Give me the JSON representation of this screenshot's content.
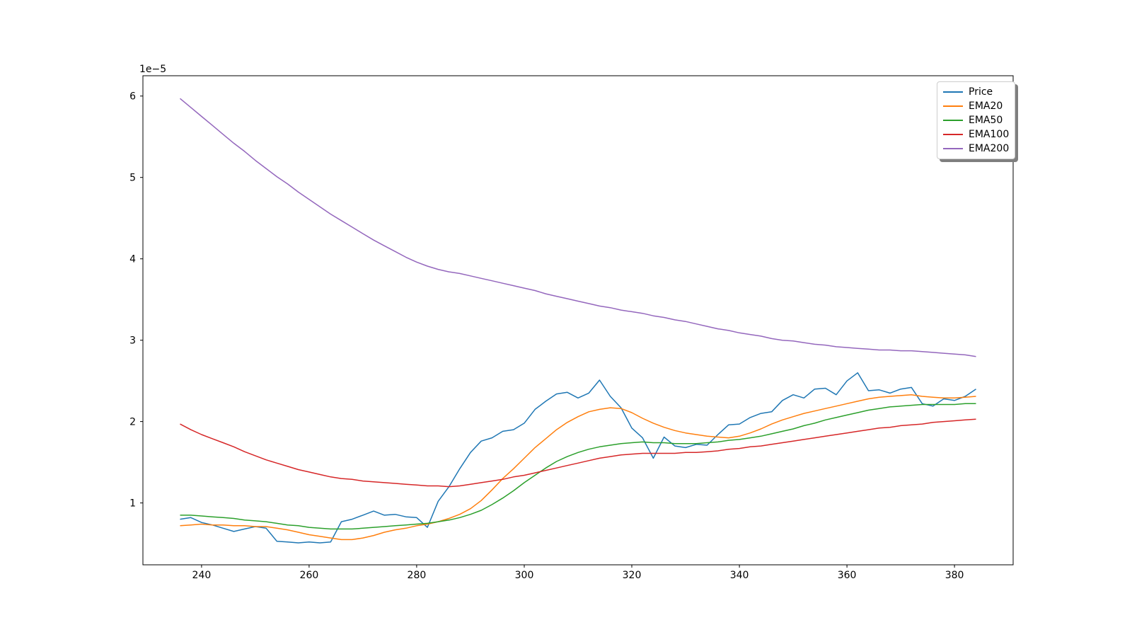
{
  "figure": {
    "background": "#ffffff"
  },
  "chart_data": {
    "type": "line",
    "title": "",
    "xlabel": "",
    "ylabel": "",
    "offset_label": "1e−5",
    "y_values_scale": "1e-5",
    "grid": false,
    "xlim": [
      229.1,
      390.9
    ],
    "ylim": [
      0.24,
      6.25
    ],
    "x_ticks": [
      240,
      260,
      280,
      300,
      320,
      340,
      360,
      380
    ],
    "y_ticks": [
      1,
      2,
      3,
      4,
      5,
      6
    ],
    "legend": {
      "position": "upper-right",
      "entries": [
        "Price",
        "EMA20",
        "EMA50",
        "EMA100",
        "EMA200"
      ]
    },
    "x": [
      236,
      238,
      240,
      242,
      244,
      246,
      248,
      250,
      252,
      254,
      256,
      258,
      260,
      262,
      264,
      266,
      268,
      270,
      272,
      274,
      276,
      278,
      280,
      282,
      284,
      286,
      288,
      290,
      292,
      294,
      296,
      298,
      300,
      302,
      304,
      306,
      308,
      310,
      312,
      314,
      316,
      318,
      320,
      322,
      324,
      326,
      328,
      330,
      332,
      334,
      336,
      338,
      340,
      342,
      344,
      346,
      348,
      350,
      352,
      354,
      356,
      358,
      360,
      362,
      364,
      366,
      368,
      370,
      372,
      374,
      376,
      378,
      380,
      382,
      384
    ],
    "series": [
      {
        "name": "Price",
        "color": "#1f77b4",
        "values": [
          0.8,
          0.82,
          0.76,
          0.73,
          0.69,
          0.65,
          0.68,
          0.71,
          0.69,
          0.53,
          0.52,
          0.51,
          0.52,
          0.51,
          0.52,
          0.77,
          0.8,
          0.85,
          0.9,
          0.85,
          0.86,
          0.83,
          0.82,
          0.7,
          1.02,
          1.2,
          1.42,
          1.62,
          1.76,
          1.8,
          1.88,
          1.9,
          1.98,
          2.15,
          2.25,
          2.34,
          2.36,
          2.29,
          2.35,
          2.51,
          2.31,
          2.17,
          1.92,
          1.8,
          1.55,
          1.81,
          1.7,
          1.68,
          1.72,
          1.71,
          1.84,
          1.96,
          1.97,
          2.05,
          2.1,
          2.12,
          2.26,
          2.33,
          2.29,
          2.4,
          2.41,
          2.33,
          2.5,
          2.6,
          2.38,
          2.39,
          2.35,
          2.4,
          2.42,
          2.22,
          2.19,
          2.28,
          2.26,
          2.31,
          2.4
        ]
      },
      {
        "name": "EMA20",
        "color": "#ff7f0e",
        "values": [
          0.72,
          0.73,
          0.74,
          0.73,
          0.73,
          0.72,
          0.72,
          0.71,
          0.71,
          0.69,
          0.67,
          0.64,
          0.61,
          0.59,
          0.57,
          0.55,
          0.55,
          0.57,
          0.6,
          0.64,
          0.67,
          0.69,
          0.72,
          0.74,
          0.77,
          0.81,
          0.86,
          0.93,
          1.03,
          1.16,
          1.3,
          1.42,
          1.55,
          1.68,
          1.79,
          1.9,
          1.99,
          2.06,
          2.12,
          2.15,
          2.17,
          2.16,
          2.11,
          2.04,
          1.98,
          1.93,
          1.89,
          1.86,
          1.84,
          1.82,
          1.81,
          1.8,
          1.82,
          1.86,
          1.91,
          1.97,
          2.02,
          2.06,
          2.1,
          2.13,
          2.16,
          2.19,
          2.22,
          2.25,
          2.28,
          2.3,
          2.31,
          2.32,
          2.33,
          2.31,
          2.3,
          2.29,
          2.29,
          2.3,
          2.31
        ]
      },
      {
        "name": "EMA50",
        "color": "#2ca02c",
        "values": [
          0.85,
          0.85,
          0.84,
          0.83,
          0.82,
          0.81,
          0.79,
          0.78,
          0.77,
          0.75,
          0.73,
          0.72,
          0.7,
          0.69,
          0.68,
          0.68,
          0.68,
          0.69,
          0.7,
          0.71,
          0.72,
          0.73,
          0.74,
          0.75,
          0.77,
          0.79,
          0.82,
          0.86,
          0.91,
          0.98,
          1.06,
          1.15,
          1.25,
          1.34,
          1.43,
          1.51,
          1.57,
          1.62,
          1.66,
          1.69,
          1.71,
          1.73,
          1.74,
          1.75,
          1.74,
          1.74,
          1.73,
          1.73,
          1.73,
          1.74,
          1.75,
          1.77,
          1.78,
          1.8,
          1.82,
          1.85,
          1.88,
          1.91,
          1.95,
          1.98,
          2.02,
          2.05,
          2.08,
          2.11,
          2.14,
          2.16,
          2.18,
          2.19,
          2.2,
          2.21,
          2.21,
          2.21,
          2.21,
          2.22,
          2.22
        ]
      },
      {
        "name": "EMA100",
        "color": "#d62728",
        "values": [
          1.97,
          1.9,
          1.84,
          1.79,
          1.74,
          1.69,
          1.63,
          1.58,
          1.53,
          1.49,
          1.45,
          1.41,
          1.38,
          1.35,
          1.32,
          1.3,
          1.29,
          1.27,
          1.26,
          1.25,
          1.24,
          1.23,
          1.22,
          1.21,
          1.21,
          1.2,
          1.21,
          1.23,
          1.25,
          1.27,
          1.29,
          1.32,
          1.34,
          1.37,
          1.4,
          1.43,
          1.46,
          1.49,
          1.52,
          1.55,
          1.57,
          1.59,
          1.6,
          1.61,
          1.61,
          1.61,
          1.61,
          1.62,
          1.62,
          1.63,
          1.64,
          1.66,
          1.67,
          1.69,
          1.7,
          1.72,
          1.74,
          1.76,
          1.78,
          1.8,
          1.82,
          1.84,
          1.86,
          1.88,
          1.9,
          1.92,
          1.93,
          1.95,
          1.96,
          1.97,
          1.99,
          2.0,
          2.01,
          2.02,
          2.03
        ]
      },
      {
        "name": "EMA200",
        "color": "#9467bd",
        "values": [
          5.97,
          5.86,
          5.75,
          5.64,
          5.53,
          5.42,
          5.32,
          5.21,
          5.11,
          5.01,
          4.92,
          4.82,
          4.73,
          4.64,
          4.55,
          4.47,
          4.39,
          4.31,
          4.23,
          4.16,
          4.09,
          4.02,
          3.96,
          3.91,
          3.87,
          3.84,
          3.82,
          3.79,
          3.76,
          3.73,
          3.7,
          3.67,
          3.64,
          3.61,
          3.57,
          3.54,
          3.51,
          3.48,
          3.45,
          3.42,
          3.4,
          3.37,
          3.35,
          3.33,
          3.3,
          3.28,
          3.25,
          3.23,
          3.2,
          3.17,
          3.14,
          3.12,
          3.09,
          3.07,
          3.05,
          3.02,
          3.0,
          2.99,
          2.97,
          2.95,
          2.94,
          2.92,
          2.91,
          2.9,
          2.89,
          2.88,
          2.88,
          2.87,
          2.87,
          2.86,
          2.85,
          2.84,
          2.83,
          2.82,
          2.8
        ]
      }
    ],
    "style": {
      "frame_color": "#000000",
      "tick_color": "#000000",
      "text_color": "#000000",
      "line_width": 1.5
    }
  }
}
